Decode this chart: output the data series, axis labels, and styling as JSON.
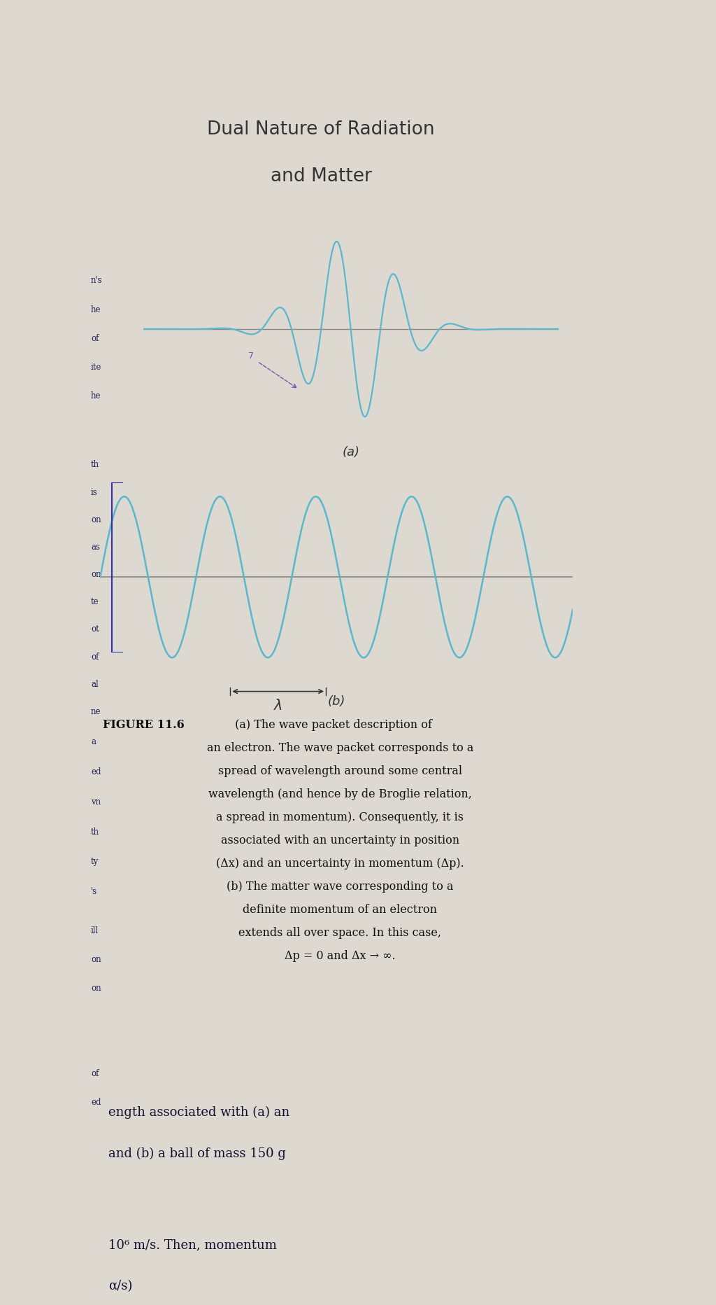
{
  "title_line1": "Dual Nature of Radiation",
  "title_line2": "and Matter",
  "wave_color": "#5bb8cc",
  "baseline_color": "#888888",
  "page_color": "#ddd8d0",
  "white_area_color": "#eeeae2",
  "title_box_color": "#c8c4be",
  "blue_bar_color": "#3baac8",
  "blue_stripe_color": "#4ab8cc",
  "label_a": "(a)",
  "label_b": "(b)",
  "figure_bold": "FIGURE 11.6",
  "caption1": " (a) The wave packet description of",
  "caption2": "an electron. The wave packet corresponds to a",
  "caption3": "spread of wavelength around some central",
  "caption4": "wavelength (and hence by de Broglie relation,",
  "caption5": "a spread in momentum). Consequently, it is",
  "caption6": "associated with an uncertainty in position",
  "caption7": "(Δx) and an uncertainty in momentum (Δp).",
  "caption8": "(b) The matter wave corresponding to a",
  "caption9": "definite momentum of an electron",
  "caption10": "extends all over space. In this case,",
  "caption11": "Δp = 0 and Δx → ∞.",
  "left_col1": [
    "n's",
    "he",
    "of",
    "ite",
    "he"
  ],
  "left_col2": [
    "th",
    "is",
    "on",
    "as",
    "on",
    "te",
    "ot",
    "of",
    "al"
  ],
  "left_col3": [
    "ne",
    "a",
    "ed",
    "vn",
    "th",
    "ty",
    "'s"
  ],
  "left_col4": [
    "ill",
    "on",
    "on"
  ],
  "left_col5": [
    "of",
    "ed"
  ],
  "bottom1": "ength associated with (a) an",
  "bottom2": "and (b) a ball of mass 150 g",
  "bottom3": "10⁶ m/s. Then, momentum",
  "bottom4": "α/s)"
}
